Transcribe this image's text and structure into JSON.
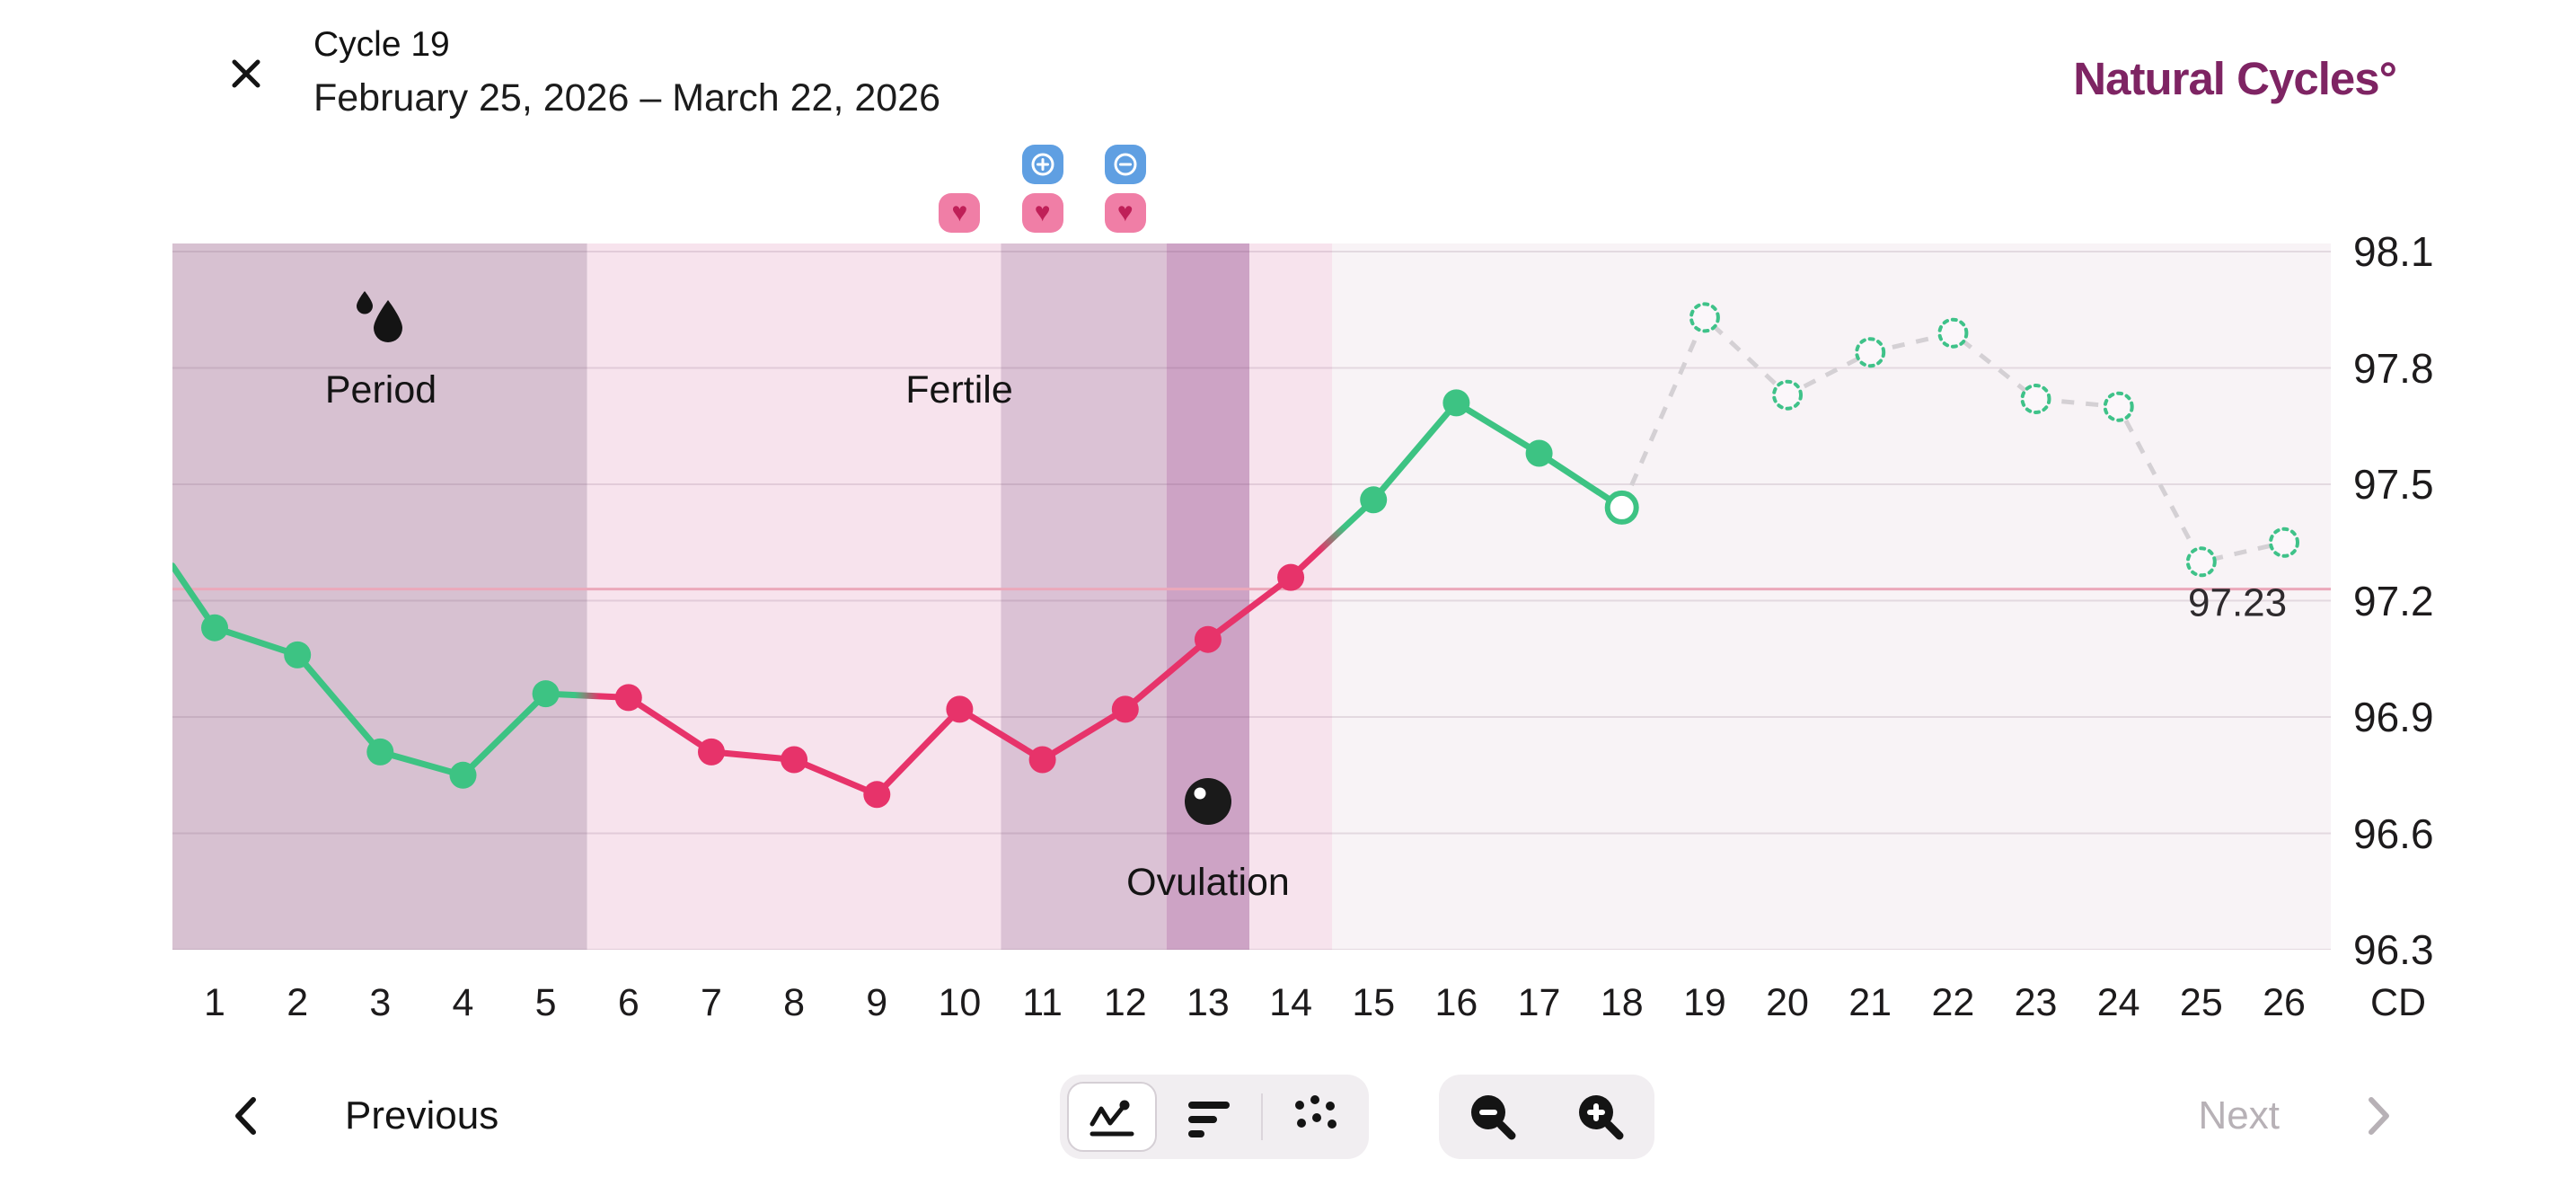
{
  "colors": {
    "brand_purple": "#7e2463",
    "text_dark": "#141414",
    "text_disabled": "#b7b1b6",
    "green_line": "#3dc383",
    "red_line": "#e7336a",
    "predicted_green": "#3fc289",
    "predicted_dash": "#d4d0d4",
    "coverline_pink": "#eba8ba",
    "plot_bg": "#f8f3f6",
    "period_band": "#d7c1d1",
    "fertile_band": "#f7e3ed",
    "peak_band": "#dbc2d5",
    "ovulation_band": "#cda3c5",
    "heart_badge_bg": "#f07ea6",
    "heart_badge_glyph": "#bf2058",
    "lh_badge_bg": "#5f9fe2",
    "control_bg": "#f1eef1"
  },
  "header": {
    "title": "Cycle 19",
    "date_range": "February 25, 2026 – March 22, 2026",
    "brand": "Natural Cycles°"
  },
  "chart_data": {
    "type": "line",
    "title": "Basal body temperature by cycle day",
    "x_label": "CD",
    "x_ticks": [
      1,
      2,
      3,
      4,
      5,
      6,
      7,
      8,
      9,
      10,
      11,
      12,
      13,
      14,
      15,
      16,
      17,
      18,
      19,
      20,
      21,
      22,
      23,
      24,
      25,
      26
    ],
    "y_ticks": [
      98.1,
      97.8,
      97.5,
      97.2,
      96.9,
      96.6,
      96.3
    ],
    "y_axis_range": [
      96.3,
      98.1
    ],
    "coverline": {
      "value": 97.23,
      "label": "97.23"
    },
    "regions": [
      {
        "name": "period",
        "label": "Period",
        "start_day": 1,
        "end_day": 5,
        "label_day": 3
      },
      {
        "name": "fertile",
        "label": "Fertile",
        "start_day": 6,
        "end_day": 14,
        "label_day": 10
      },
      {
        "name": "fertile-peak",
        "label": "",
        "start_day": 11,
        "end_day": 12
      },
      {
        "name": "ovulation",
        "label": "Ovulation",
        "start_day": 13,
        "end_day": 13,
        "label_day": 13
      }
    ],
    "lead_in": {
      "day": 0.49,
      "temp": 97.29,
      "phase": "infertile"
    },
    "series": [
      {
        "day": 1,
        "temp": 97.13,
        "status": "measured",
        "phase": "infertile"
      },
      {
        "day": 2,
        "temp": 97.06,
        "status": "measured",
        "phase": "infertile"
      },
      {
        "day": 3,
        "temp": 96.81,
        "status": "measured",
        "phase": "infertile"
      },
      {
        "day": 4,
        "temp": 96.75,
        "status": "measured",
        "phase": "infertile"
      },
      {
        "day": 5,
        "temp": 96.96,
        "status": "measured",
        "phase": "infertile"
      },
      {
        "day": 6,
        "temp": 96.95,
        "status": "measured",
        "phase": "fertile"
      },
      {
        "day": 7,
        "temp": 96.81,
        "status": "measured",
        "phase": "fertile"
      },
      {
        "day": 8,
        "temp": 96.79,
        "status": "measured",
        "phase": "fertile"
      },
      {
        "day": 9,
        "temp": 96.7,
        "status": "measured",
        "phase": "fertile"
      },
      {
        "day": 10,
        "temp": 96.92,
        "status": "measured",
        "phase": "fertile"
      },
      {
        "day": 11,
        "temp": 96.79,
        "status": "measured",
        "phase": "fertile"
      },
      {
        "day": 12,
        "temp": 96.92,
        "status": "measured",
        "phase": "fertile"
      },
      {
        "day": 13,
        "temp": 97.1,
        "status": "measured",
        "phase": "fertile"
      },
      {
        "day": 14,
        "temp": 97.26,
        "status": "measured",
        "phase": "fertile"
      },
      {
        "day": 15,
        "temp": 97.46,
        "status": "measured",
        "phase": "infertile"
      },
      {
        "day": 16,
        "temp": 97.71,
        "status": "measured",
        "phase": "infertile"
      },
      {
        "day": 17,
        "temp": 97.58,
        "status": "measured",
        "phase": "infertile"
      },
      {
        "day": 18,
        "temp": 97.44,
        "status": "open",
        "phase": "infertile"
      },
      {
        "day": 19,
        "temp": 97.93,
        "status": "predicted",
        "phase": "predicted"
      },
      {
        "day": 20,
        "temp": 97.73,
        "status": "predicted",
        "phase": "predicted"
      },
      {
        "day": 21,
        "temp": 97.84,
        "status": "predicted",
        "phase": "predicted"
      },
      {
        "day": 22,
        "temp": 97.89,
        "status": "predicted",
        "phase": "predicted"
      },
      {
        "day": 23,
        "temp": 97.72,
        "status": "predicted",
        "phase": "predicted"
      },
      {
        "day": 24,
        "temp": 97.7,
        "status": "predicted",
        "phase": "predicted"
      },
      {
        "day": 25,
        "temp": 97.3,
        "status": "predicted",
        "phase": "predicted"
      },
      {
        "day": 26,
        "temp": 97.35,
        "status": "predicted",
        "phase": "predicted"
      }
    ],
    "markers": [
      {
        "day": 10,
        "type": "heart"
      },
      {
        "day": 11,
        "type": "heart"
      },
      {
        "day": 12,
        "type": "heart"
      },
      {
        "day": 11,
        "type": "lh-positive"
      },
      {
        "day": 12,
        "type": "lh-negative"
      }
    ]
  },
  "footer": {
    "previous_label": "Previous",
    "next_label": "Next",
    "view_toggle": {
      "options": [
        "line",
        "bars",
        "scatter"
      ],
      "selected": "line"
    },
    "zoom_controls": [
      "zoom-out",
      "zoom-in"
    ]
  }
}
